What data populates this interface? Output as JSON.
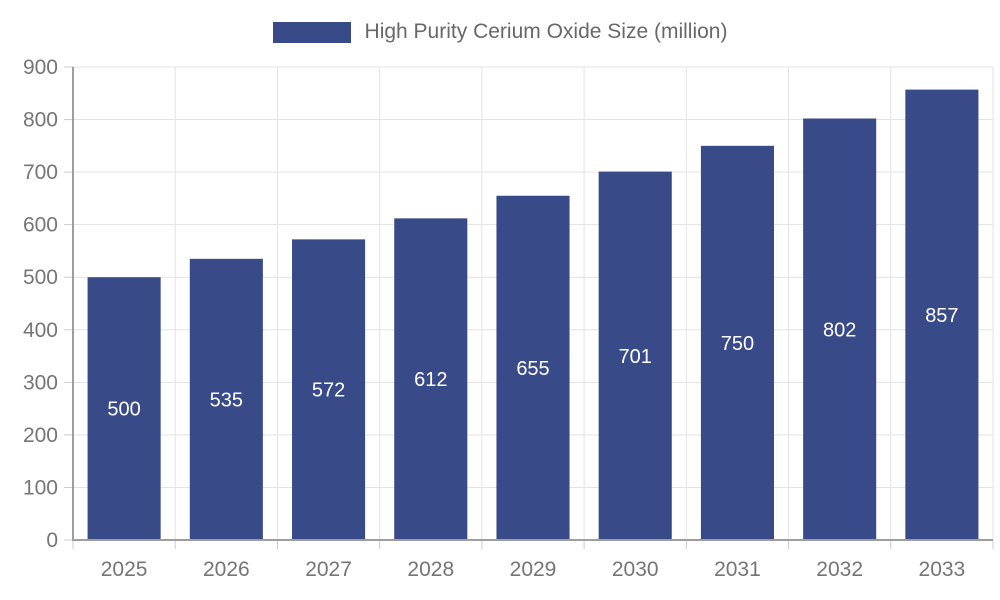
{
  "chart_data": {
    "type": "bar",
    "title": "High Purity Cerium Oxide Size (million)",
    "categories": [
      "2025",
      "2026",
      "2027",
      "2028",
      "2029",
      "2030",
      "2031",
      "2032",
      "2033"
    ],
    "values": [
      500,
      535,
      572,
      612,
      655,
      701,
      750,
      802,
      857
    ],
    "series": [
      {
        "name": "High Purity Cerium Oxide Size (million)",
        "values": [
          500,
          535,
          572,
          612,
          655,
          701,
          750,
          802,
          857
        ]
      }
    ],
    "xlabel": "",
    "ylabel": "",
    "ylim": [
      0,
      900
    ],
    "yticks": [
      0,
      100,
      200,
      300,
      400,
      500,
      600,
      700,
      800,
      900
    ],
    "grid": "on",
    "legend_position": "top",
    "value_labels": "inside-center",
    "colors": {
      "bar": "#394a88",
      "axis_line": "#9e9e9e",
      "grid_line": "#e3e3e3",
      "tick_line": "#cccccc",
      "axis_text": "#757575",
      "legend_text": "#686868",
      "value_text": "#ffffff",
      "background": "#ffffff"
    }
  }
}
